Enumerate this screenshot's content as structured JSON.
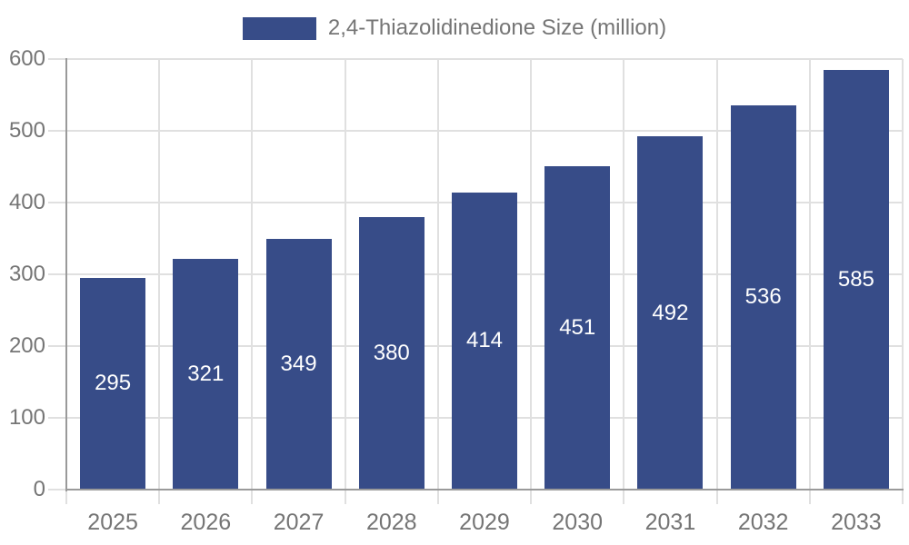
{
  "legend": {
    "label": "2,4-Thiazolidinedione Size (million)"
  },
  "chart_data": {
    "type": "bar",
    "title": "",
    "series_name": "2,4-Thiazolidinedione Size (million)",
    "categories": [
      "2025",
      "2026",
      "2027",
      "2028",
      "2029",
      "2030",
      "2031",
      "2032",
      "2033"
    ],
    "values": [
      295,
      321,
      349,
      380,
      414,
      451,
      492,
      536,
      585
    ],
    "xlabel": "",
    "ylabel": "",
    "ylim": [
      0,
      600
    ],
    "yticks": [
      0,
      100,
      200,
      300,
      400,
      500,
      600
    ],
    "grid": true,
    "legend_position": "top-center",
    "bar_color": "#374c88",
    "value_label_position": "inside-center",
    "value_label_color": "#ffffff",
    "axis_color": "#9a9a9a",
    "gridline_color": "#e0e0e0",
    "tick_label_color": "#757575"
  }
}
